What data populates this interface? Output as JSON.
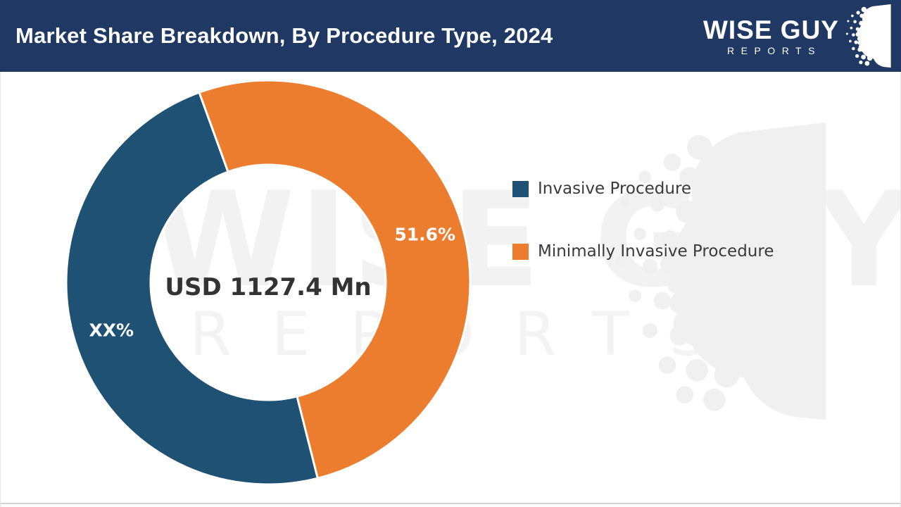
{
  "header": {
    "title": "Market Share Breakdown, By Procedure Type, 2024",
    "bg_color": "#1f3864",
    "logo": {
      "line1": "WISE GUY",
      "line2": "REPORTS"
    }
  },
  "chart_data": {
    "type": "donut",
    "title": "Market Share Breakdown, By Procedure Type, 2024",
    "center_label": "USD 1127.4 Mn",
    "start_angle_deg": 165.8,
    "series": [
      {
        "name": "Invasive Procedure",
        "value": 48.4,
        "label": "XX%",
        "color": "#1f5174"
      },
      {
        "name": "Minimally Invasive Procedure",
        "value": 51.6,
        "label": "51.6%",
        "color": "#ec7d2f"
      }
    ],
    "legend_position": "right",
    "grid": false,
    "donut": {
      "cx": 380,
      "cy": 299,
      "outer_r": 287,
      "inner_r": 167,
      "label_r": 233,
      "gap_stroke": "#ffffff"
    }
  },
  "legend": {
    "items": [
      {
        "label": "Invasive Procedure",
        "color": "#1f5174"
      },
      {
        "label": "Minimally Invasive Procedure",
        "color": "#ec7d2f"
      }
    ]
  },
  "watermark": {
    "line1": "WISE GUY",
    "line2": "REPORTS"
  },
  "colors": {
    "header_bg": "#1f3864",
    "slice_blue": "#1f5174",
    "slice_orange": "#ec7d2f",
    "center_text": "#333333"
  }
}
